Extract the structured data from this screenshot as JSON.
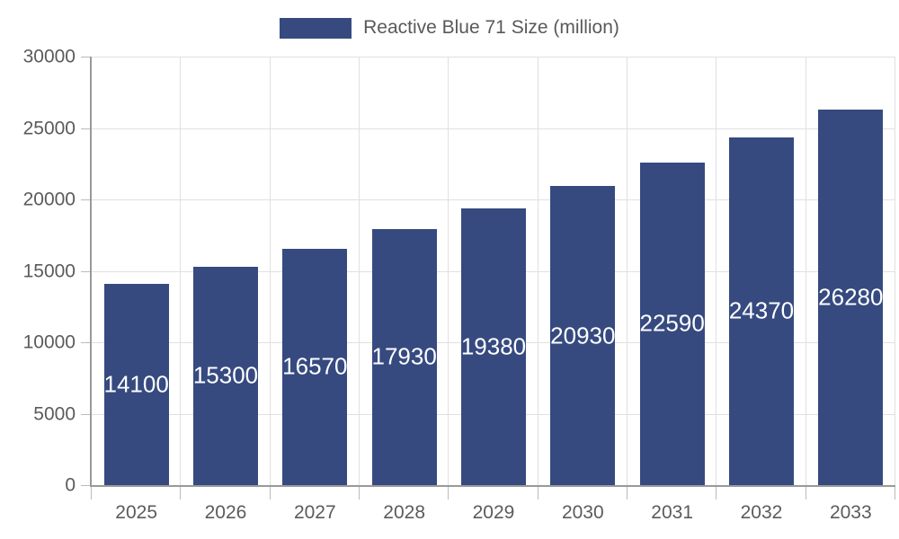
{
  "legend": {
    "label": "Reactive Blue 71 Size (million)"
  },
  "chart_data": {
    "type": "bar",
    "title": "",
    "series_name": "Reactive Blue 71 Size (million)",
    "categories": [
      "2025",
      "2026",
      "2027",
      "2028",
      "2029",
      "2030",
      "2031",
      "2032",
      "2033"
    ],
    "values": [
      14100,
      15300,
      16570,
      17930,
      19380,
      20930,
      22590,
      24370,
      26280
    ],
    "xlabel": "",
    "ylabel": "",
    "ylim": [
      0,
      30000
    ],
    "yticks": [
      0,
      5000,
      10000,
      15000,
      20000,
      25000,
      30000
    ],
    "grid": true,
    "legend_position": "top-center",
    "value_labels": "inside-center",
    "colors": {
      "bar": "#364A80",
      "bar_label": "#FFFFFF",
      "axis_line": "#999999",
      "grid_line": "#E0E0E0",
      "tick_mark": "#BBBBBB",
      "axis_text": "#5B5B5B",
      "legend_text": "#58595B",
      "background": "#FFFFFF"
    }
  }
}
